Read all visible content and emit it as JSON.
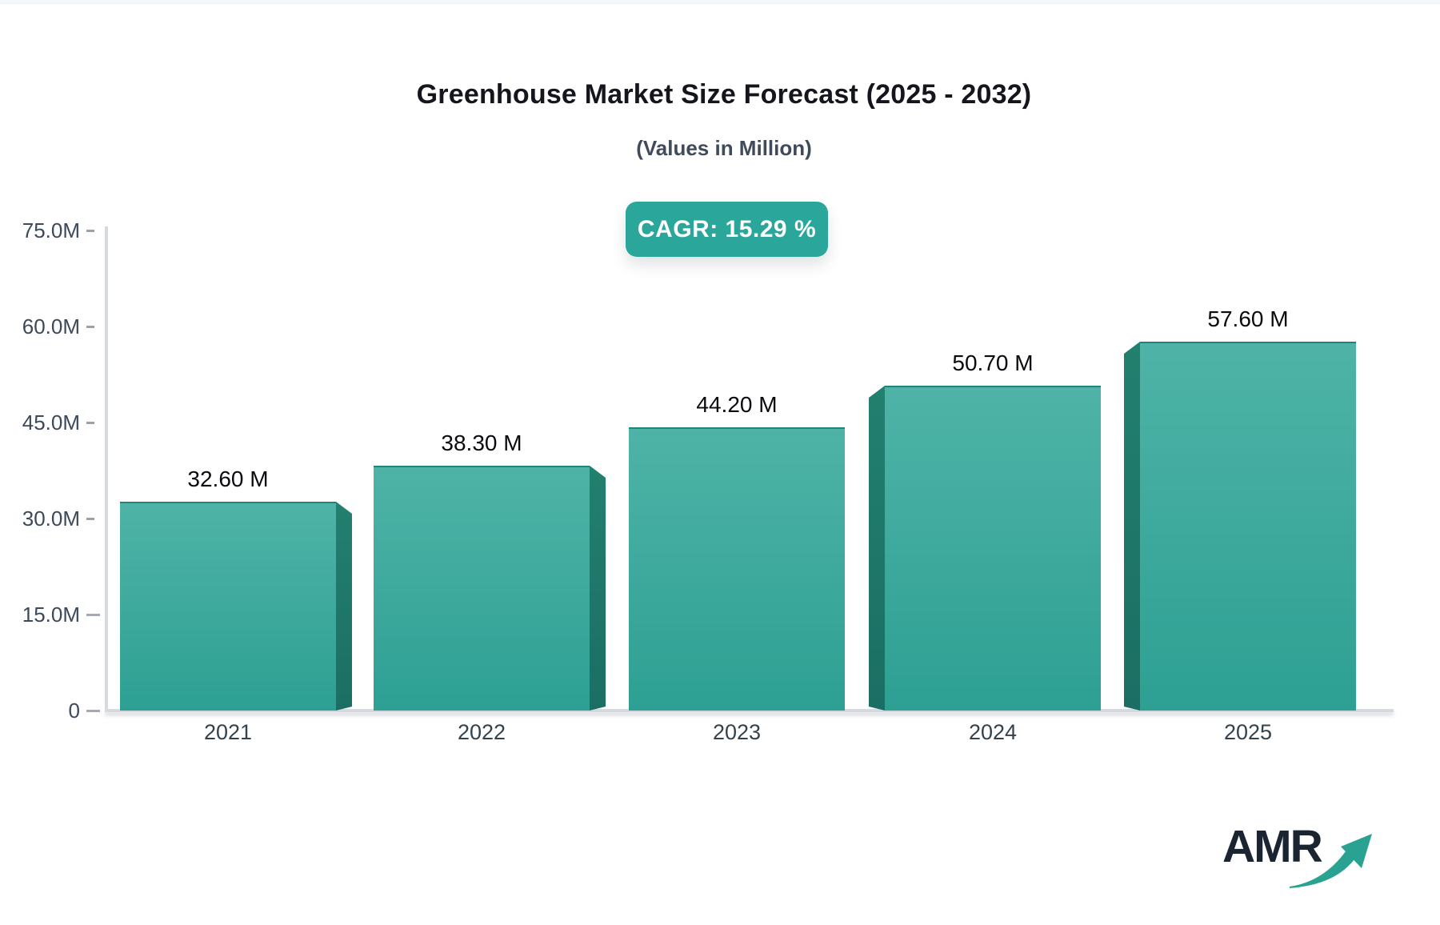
{
  "header": {
    "title": "Greenhouse Market Size Forecast (2025 - 2032)",
    "subtitle": "(Values in Million)",
    "cagr_badge": "CAGR: 15.29 %"
  },
  "chart_data": {
    "type": "bar",
    "title": "Greenhouse Market Size Forecast (2025 - 2032)",
    "subtitle": "(Values in Million)",
    "unit": "Million",
    "cagr_percent": 15.29,
    "categories": [
      "2021",
      "2022",
      "2023",
      "2024",
      "2025"
    ],
    "values": [
      32.6,
      38.3,
      44.2,
      50.7,
      57.6
    ],
    "bars": [
      {
        "year": "2021",
        "value": 32.6,
        "label": "32.60 M"
      },
      {
        "year": "2022",
        "value": 38.3,
        "label": "38.30 M"
      },
      {
        "year": "2023",
        "value": 44.2,
        "label": "44.20 M"
      },
      {
        "year": "2024",
        "value": 50.7,
        "label": "50.70 M"
      },
      {
        "year": "2025",
        "value": 57.6,
        "label": "57.60 M"
      }
    ],
    "ylim": [
      0,
      75
    ],
    "ytick_values": [
      75,
      60,
      45,
      30,
      15,
      0
    ],
    "ytick_labels": [
      "75.0M",
      "60.0M",
      "45.0M",
      "30.0M",
      "15.0M",
      "0"
    ],
    "grid": false,
    "legend": false
  },
  "colors": {
    "bar_top": "#4fb3a7",
    "bar_bottom": "#2da093",
    "bar_side_top": "#22806f",
    "bar_side_bottom": "#1b6e63",
    "badge_bg": "#2ba69a",
    "title_color": "#15161d",
    "subtitle_color": "#3f4a5a",
    "axis_label": "#3c4959",
    "axis_line": "#d6d9de",
    "tick_color": "#9aa1ac",
    "value_color": "#0b0b0f",
    "logo_text": "#1b2531",
    "logo_arrow": "#2aa291"
  },
  "logo": {
    "text": "AMR",
    "icon": "growth-arrow-icon"
  }
}
